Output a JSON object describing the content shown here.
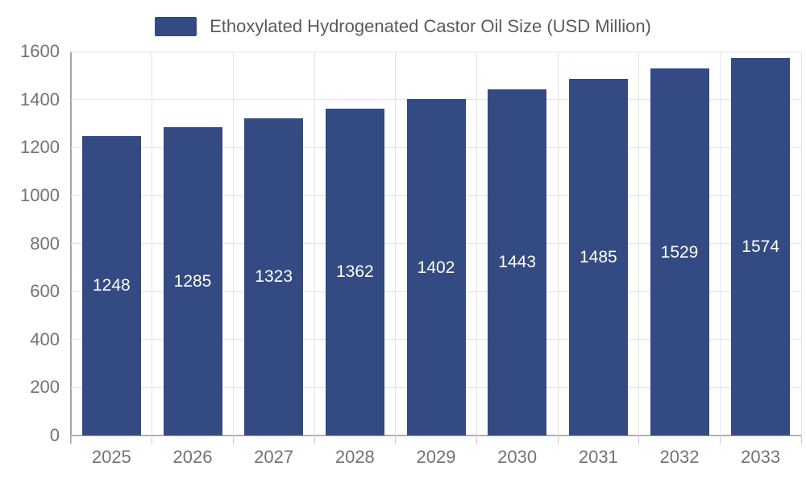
{
  "legend": {
    "label": "Ethoxylated Hydrogenated Castor Oil Size (USD Million)"
  },
  "colors": {
    "bar": "#344a83",
    "bar_label": "#ffffff",
    "gridline": "#e4e4e4",
    "axis_line": "#a6a6a6",
    "tick": "#c9c9c9",
    "axis_text": "#737373",
    "legend_text": "#5a5a5a",
    "background": "#ffffff"
  },
  "chart_data": {
    "type": "bar",
    "title": "Ethoxylated Hydrogenated Castor Oil Size (USD Million)",
    "categories": [
      "2025",
      "2026",
      "2027",
      "2028",
      "2029",
      "2030",
      "2031",
      "2032",
      "2033"
    ],
    "values": [
      1248,
      1285,
      1323,
      1362,
      1402,
      1443,
      1485,
      1529,
      1574
    ],
    "series": [
      {
        "name": "Ethoxylated Hydrogenated Castor Oil Size (USD Million)",
        "values": [
          1248,
          1285,
          1323,
          1362,
          1402,
          1443,
          1485,
          1529,
          1574
        ]
      }
    ],
    "xlabel": "",
    "ylabel": "",
    "ylim": [
      0,
      1600
    ],
    "yticks": [
      0,
      200,
      400,
      600,
      800,
      1000,
      1200,
      1400,
      1600
    ],
    "grid": true,
    "legend_position": "top",
    "value_labels": "inside-center"
  }
}
